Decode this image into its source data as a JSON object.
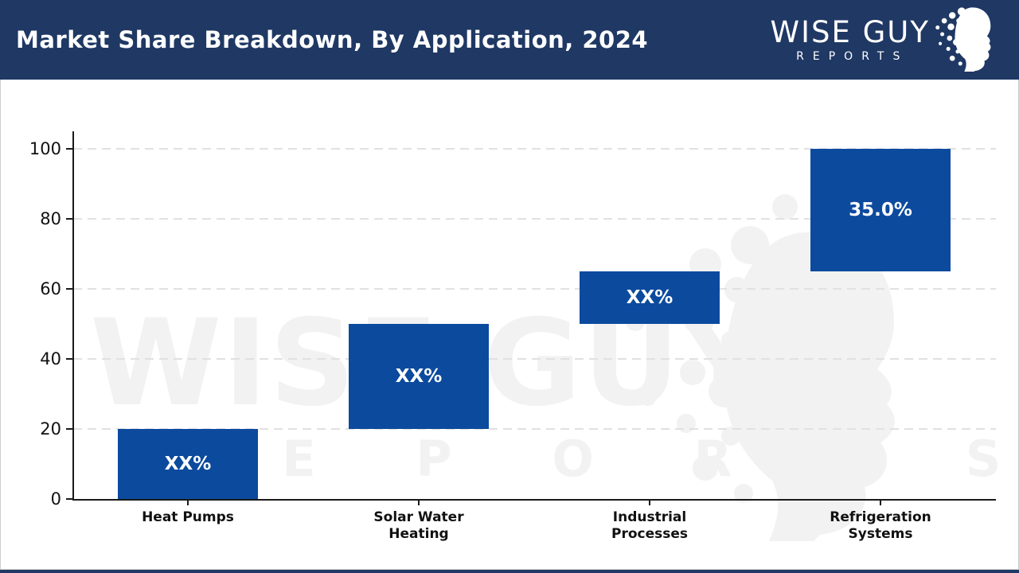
{
  "header": {
    "title": "Market Share Breakdown, By Application, 2024"
  },
  "logo": {
    "line1": "WISE GUY",
    "line2": "REPORTS"
  },
  "watermark": {
    "line1": "WISE GUY",
    "line2": "R E P O R T S"
  },
  "colors": {
    "header_bg": "#1f3864",
    "footer_bg": "#1f3864",
    "bar": "#0c4a9e",
    "bar_label": "#ffffff",
    "grid": "#e1e1e1",
    "axis": "#1a1a1a",
    "watermark": "#f2f2f2"
  },
  "chart_data": {
    "type": "bar",
    "subtype": "waterfall",
    "title": "Market Share Breakdown, By Application, 2024",
    "xlabel": "",
    "ylabel": "",
    "ylim": [
      0,
      100
    ],
    "yticks": [
      0,
      20,
      40,
      60,
      80,
      100
    ],
    "grid": "horizontal-dashed",
    "legend": "none",
    "categories": [
      "Heat Pumps",
      "Solar Water\nHeating",
      "Industrial\nProcesses",
      "Refrigeration\nSystems"
    ],
    "bars": [
      {
        "category": "Heat Pumps",
        "start": 0,
        "end": 20,
        "label": "XX%"
      },
      {
        "category": "Solar Water Heating",
        "start": 20,
        "end": 50,
        "label": "XX%"
      },
      {
        "category": "Industrial Processes",
        "start": 50,
        "end": 65,
        "label": "XX%"
      },
      {
        "category": "Refrigeration Systems",
        "start": 65,
        "end": 100,
        "label": "35.0%",
        "value": 35.0
      }
    ]
  }
}
